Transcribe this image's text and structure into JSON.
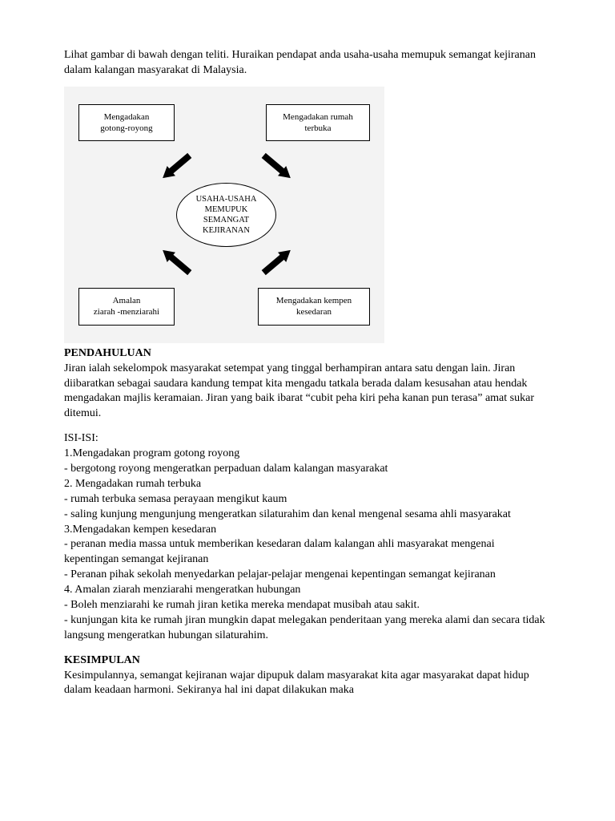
{
  "intro": "Lihat gambar di bawah dengan teliti. Huraikan pendapat anda usaha-usaha memupuk semangat kejiranan dalam kalangan masyarakat di Malaysia.",
  "diagram": {
    "background_color": "#f3f3f3",
    "box_bg": "#ffffff",
    "border_color": "#000000",
    "arrow_color": "#000000",
    "font_size_box": 11,
    "font_size_center": 10.5,
    "nodes": {
      "top_left": "Mengadakan\ngotong-royong",
      "top_right": "Mengadakan rumah\nterbuka",
      "bottom_left": "Amalan\nziarah -menziarahi",
      "bottom_right": "Mengadakan kempen\nkesedaran",
      "center": "USAHA-USAHA\nMEMUPUK\nSEMANGAT\nKEJIRANAN"
    }
  },
  "pendahuluan": {
    "title": "PENDAHULUAN",
    "body": "Jiran ialah sekelompok masyarakat setempat yang tinggal berhampiran antara satu dengan lain. Jiran diibaratkan sebagai saudara kandung tempat kita mengadu tatkala berada dalam kesusahan atau hendak mengadakan majlis keramaian. Jiran yang baik ibarat “cubit peha kiri peha kanan pun terasa” amat sukar ditemui."
  },
  "isi": {
    "title": "ISI-ISI:",
    "lines": [
      "1.Mengadakan program gotong royong",
      "- bergotong royong mengeratkan perpaduan dalam kalangan masyarakat",
      "2. Mengadakan rumah terbuka",
      "- rumah terbuka semasa perayaan mengikut kaum",
      "- saling kunjung mengunjung mengeratkan silaturahim dan kenal mengenal sesama ahli masyarakat",
      "3.Mengadakan kempen kesedaran",
      "- peranan media massa untuk memberikan kesedaran dalam kalangan ahli masyarakat mengenai kepentingan semangat kejiranan",
      "- Peranan pihak sekolah menyedarkan pelajar-pelajar mengenai kepentingan semangat kejiranan",
      "4. Amalan ziarah menziarahi mengeratkan hubungan",
      "- Boleh menziarahi ke rumah jiran ketika mereka mendapat musibah atau sakit.",
      "- kunjungan kita ke rumah jiran mungkin dapat melegakan penderitaan yang mereka alami dan secara tidak langsung mengeratkan hubungan silaturahim."
    ]
  },
  "kesimpulan": {
    "title": "KESIMPULAN",
    "body": "Kesimpulannya, semangat kejiranan wajar dipupuk dalam masyarakat kita agar masyarakat dapat hidup dalam keadaan harmoni. Sekiranya hal ini dapat dilakukan maka"
  }
}
